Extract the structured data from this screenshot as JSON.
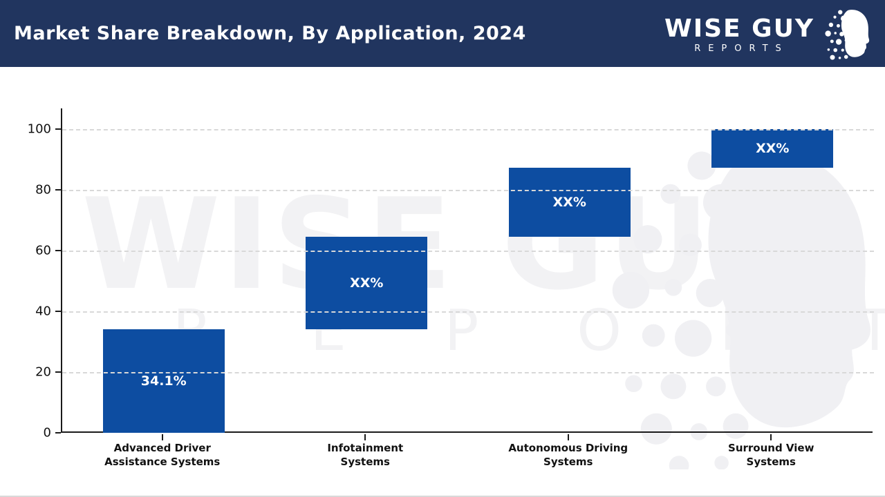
{
  "header": {
    "title": "Market Share Breakdown, By Application, 2024",
    "logo": {
      "line1": "WISE GUY",
      "line2": "REPORTS"
    }
  },
  "watermark": {
    "line1": "WISE GUY",
    "line2": "R E P O R T S"
  },
  "colors": {
    "header_bg": "#21355f",
    "bar": "#0d4da1",
    "grid": "#d8d8d8",
    "axis": "#1a1a1a",
    "bar_label": "#ffffff",
    "watermark": "#f2f2f4"
  },
  "chart_data": {
    "type": "bar",
    "subtype": "floating-waterfall",
    "title": "Market Share Breakdown, By Application, 2024",
    "xlabel": "",
    "ylabel": "",
    "ylim": [
      0,
      100
    ],
    "yticks": [
      0,
      20,
      40,
      60,
      80,
      100
    ],
    "grid": "horizontal-dashed",
    "legend": null,
    "categories": [
      [
        "Advanced Driver",
        "Assistance Systems"
      ],
      [
        "Infotainment",
        "Systems"
      ],
      [
        "Autonomous Driving",
        "Systems"
      ],
      [
        "Surround View",
        "Systems"
      ]
    ],
    "segments": [
      {
        "category": "Advanced Driver Assistance Systems",
        "start": 0,
        "end": 34.1,
        "label": "34.1%"
      },
      {
        "category": "Infotainment Systems",
        "start": 34.1,
        "end": 64.5,
        "label": "XX%"
      },
      {
        "category": "Autonomous Driving Systems",
        "start": 64.5,
        "end": 87.3,
        "label": "XX%"
      },
      {
        "category": "Surround View Systems",
        "start": 87.3,
        "end": 100,
        "label": "XX%"
      }
    ]
  }
}
